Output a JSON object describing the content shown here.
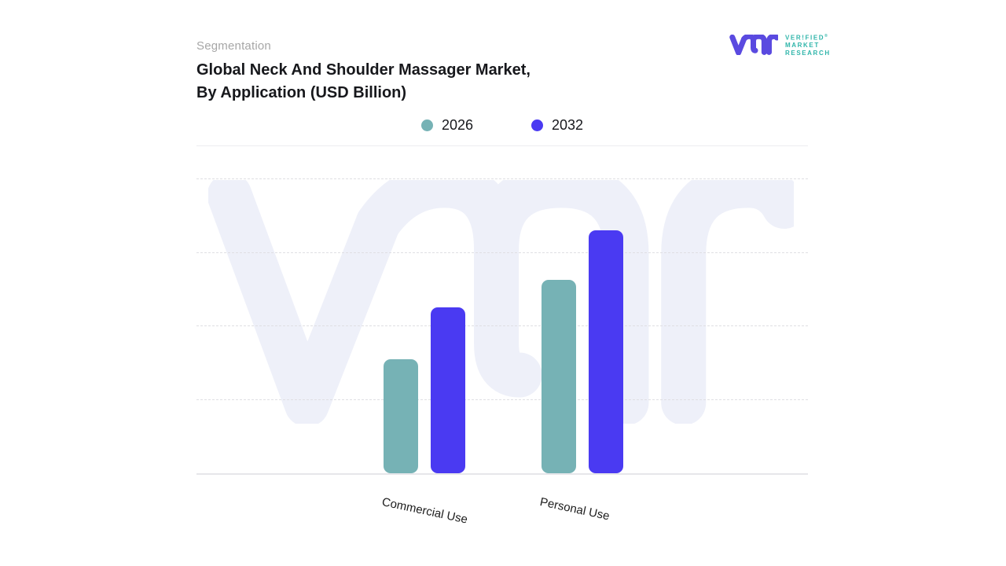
{
  "header": {
    "eyebrow": "Segmentation",
    "title_line1": "Global Neck And Shoulder Massager Market,",
    "title_line2": "By Application (USD Billion)"
  },
  "brand": {
    "name_line1": "VER!FIED",
    "name_line2": "MARKET",
    "name_line3": "RESEARCH",
    "registered_mark": "®",
    "monogram_color": "#5a4ae0",
    "text_color": "#2fb5aa"
  },
  "legend": {
    "items": [
      {
        "label": "2026",
        "color": "#76b2b5"
      },
      {
        "label": "2032",
        "color": "#4a3af2"
      }
    ]
  },
  "chart_data": {
    "type": "bar",
    "title": "Global Neck And Shoulder Massager Market, By Application (USD Billion)",
    "categories": [
      "Commercial Use",
      "Personal Use"
    ],
    "series": [
      {
        "name": "2026",
        "color": "#76b2b5",
        "values": [
          1.55,
          2.63
        ]
      },
      {
        "name": "2032",
        "color": "#4a3af2",
        "values": [
          2.26,
          3.31
        ]
      }
    ],
    "xlabel": "",
    "ylabel": "",
    "value_axis": {
      "tick_labels_visible": false,
      "unit": "USD Billion (axis unlabeled, values in gridline units)",
      "ylim": [
        0,
        4.47
      ],
      "gridline_units": [
        1,
        2,
        3,
        4
      ]
    },
    "grid": "horizontal-dashed",
    "legend_position": "top-center",
    "category_label_rotation_deg": 12
  },
  "watermark": {
    "name": "vmr-monogram-watermark",
    "color": "#eef0f9"
  }
}
